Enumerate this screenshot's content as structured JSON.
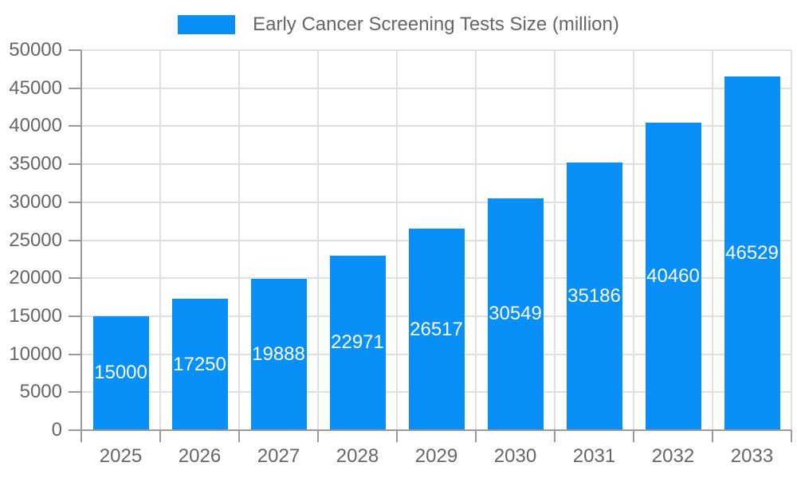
{
  "chart_data": {
    "type": "bar",
    "title": "Early Cancer Screening Tests Size (million)",
    "categories": [
      "2025",
      "2026",
      "2027",
      "2028",
      "2029",
      "2030",
      "2031",
      "2032",
      "2033"
    ],
    "series": [
      {
        "name": "Early Cancer Screening Tests Size (million)",
        "values": [
          15000,
          17250,
          19888,
          22971,
          26517,
          30549,
          35186,
          40460,
          46529
        ]
      }
    ],
    "xlabel": "",
    "ylabel": "",
    "ylim": [
      0,
      50000
    ],
    "ytick_step": 5000,
    "grid": true,
    "legend_position": "top",
    "bar_value_labels": true
  },
  "colors": {
    "bar": "#0890f8",
    "grid": "#e0e0e0",
    "axis": "#9a9a9a",
    "text": "#666666",
    "bar_label": "#ffffff",
    "background": "#ffffff"
  }
}
